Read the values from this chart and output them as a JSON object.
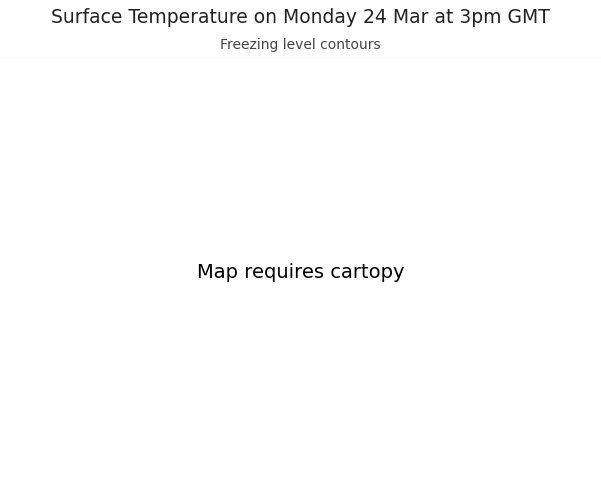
{
  "title": "Surface Temperature on Monday 24 Mar at 3pm GMT",
  "subtitle": "Freezing level contours",
  "title_fontsize": 13.5,
  "subtitle_fontsize": 10,
  "header_bg": "#ffffff",
  "ocean_color": [
    0.761,
    0.788,
    0.855
  ],
  "fig_width": 6.01,
  "fig_height": 4.88,
  "dpi": 100,
  "title_color": "#222222",
  "subtitle_color": "#444444",
  "contour_color": "#cc0000",
  "contour_lw": 1.4,
  "header_line_color": "#cccccc",
  "map_border_color": "#888888",
  "lon_min": -25.0,
  "lon_max": 25.0,
  "lat_min": 35.0,
  "lat_max": 72.0
}
